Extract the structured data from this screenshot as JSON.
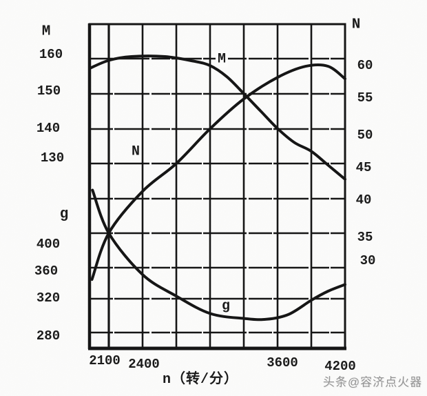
{
  "chart_data": {
    "type": "line",
    "title": "",
    "xlabel": "n（转/分）",
    "x_ticks_shown": [
      "2100",
      "2400",
      "3600",
      "4200"
    ],
    "x_gridlines": [
      2100,
      2400,
      2700,
      3000,
      3300,
      3600,
      3900,
      4200
    ],
    "x_range": [
      1930,
      4200
    ],
    "grid": true,
    "legend_position": "labels-on-curves",
    "axes": {
      "left_torque": {
        "title": "M",
        "ticks": [
          "160",
          "150",
          "140",
          "130"
        ],
        "tick_values": [
          160,
          150,
          140,
          130
        ]
      },
      "left_fuel": {
        "title": "g",
        "ticks": [
          "400",
          "360",
          "320",
          "280"
        ],
        "tick_values": [
          400,
          360,
          320,
          280
        ]
      },
      "right_power": {
        "title": "N",
        "ticks": [
          "60",
          "55",
          "50",
          "45",
          "40",
          "35",
          "30"
        ],
        "tick_values": [
          60,
          55,
          50,
          45,
          40,
          35,
          30
        ]
      }
    },
    "series": [
      {
        "name": "M",
        "axis": "left_torque",
        "points": [
          [
            1935,
            157.3
          ],
          [
            2100,
            159.5
          ],
          [
            2300,
            160.6
          ],
          [
            2600,
            160.6
          ],
          [
            2850,
            159.3
          ],
          [
            3000,
            158
          ],
          [
            3150,
            154.8
          ],
          [
            3300,
            150
          ],
          [
            3450,
            145
          ],
          [
            3600,
            140
          ],
          [
            3750,
            136
          ],
          [
            3900,
            133.5
          ],
          [
            4050,
            129.5
          ],
          [
            4200,
            125.5
          ]
        ]
      },
      {
        "name": "N",
        "axis": "right_power",
        "points": [
          [
            1950,
            28.3
          ],
          [
            2100,
            35
          ],
          [
            2400,
            41
          ],
          [
            2700,
            45
          ],
          [
            3000,
            50
          ],
          [
            3300,
            54.3
          ],
          [
            3600,
            57.4
          ],
          [
            3850,
            59
          ],
          [
            4050,
            59
          ],
          [
            4200,
            57.2
          ]
        ]
      },
      {
        "name": "g",
        "axis": "left_fuel",
        "points": [
          [
            1955,
            452
          ],
          [
            2100,
            400
          ],
          [
            2400,
            350
          ],
          [
            2700,
            324
          ],
          [
            3000,
            303
          ],
          [
            3300,
            297
          ],
          [
            3500,
            296
          ],
          [
            3700,
            302
          ],
          [
            3900,
            319
          ],
          [
            4050,
            330
          ],
          [
            4200,
            338
          ]
        ]
      }
    ]
  },
  "watermark": {
    "text": "头条@容济点火器"
  }
}
